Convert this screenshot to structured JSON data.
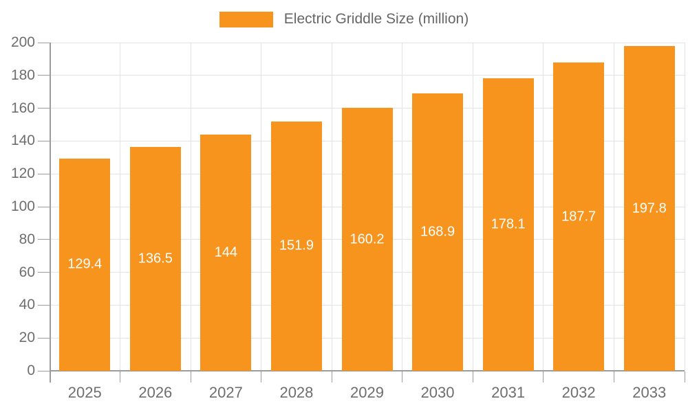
{
  "legend": {
    "label": "Electric Griddle Size (million)"
  },
  "colors": {
    "bar": "#F7941E",
    "grid": "#E3E3E3",
    "axis": "#9B9B9B",
    "tick_text": "#6E6E6E",
    "legend_text": "#666666",
    "bar_label": "#FFFFFF",
    "background": "#FFFFFF"
  },
  "chart_data": {
    "type": "bar",
    "title": "",
    "xlabel": "",
    "ylabel": "",
    "categories": [
      "2025",
      "2026",
      "2027",
      "2028",
      "2029",
      "2030",
      "2031",
      "2032",
      "2033"
    ],
    "series": [
      {
        "name": "Electric Griddle Size (million)",
        "values": [
          129.4,
          136.5,
          144,
          151.9,
          160.2,
          168.9,
          178.1,
          187.7,
          197.8
        ]
      }
    ],
    "ylim": [
      0,
      200
    ],
    "ytick_step": 20,
    "grid": true,
    "legend_position": "top",
    "bar_value_labels": "inside-center"
  }
}
